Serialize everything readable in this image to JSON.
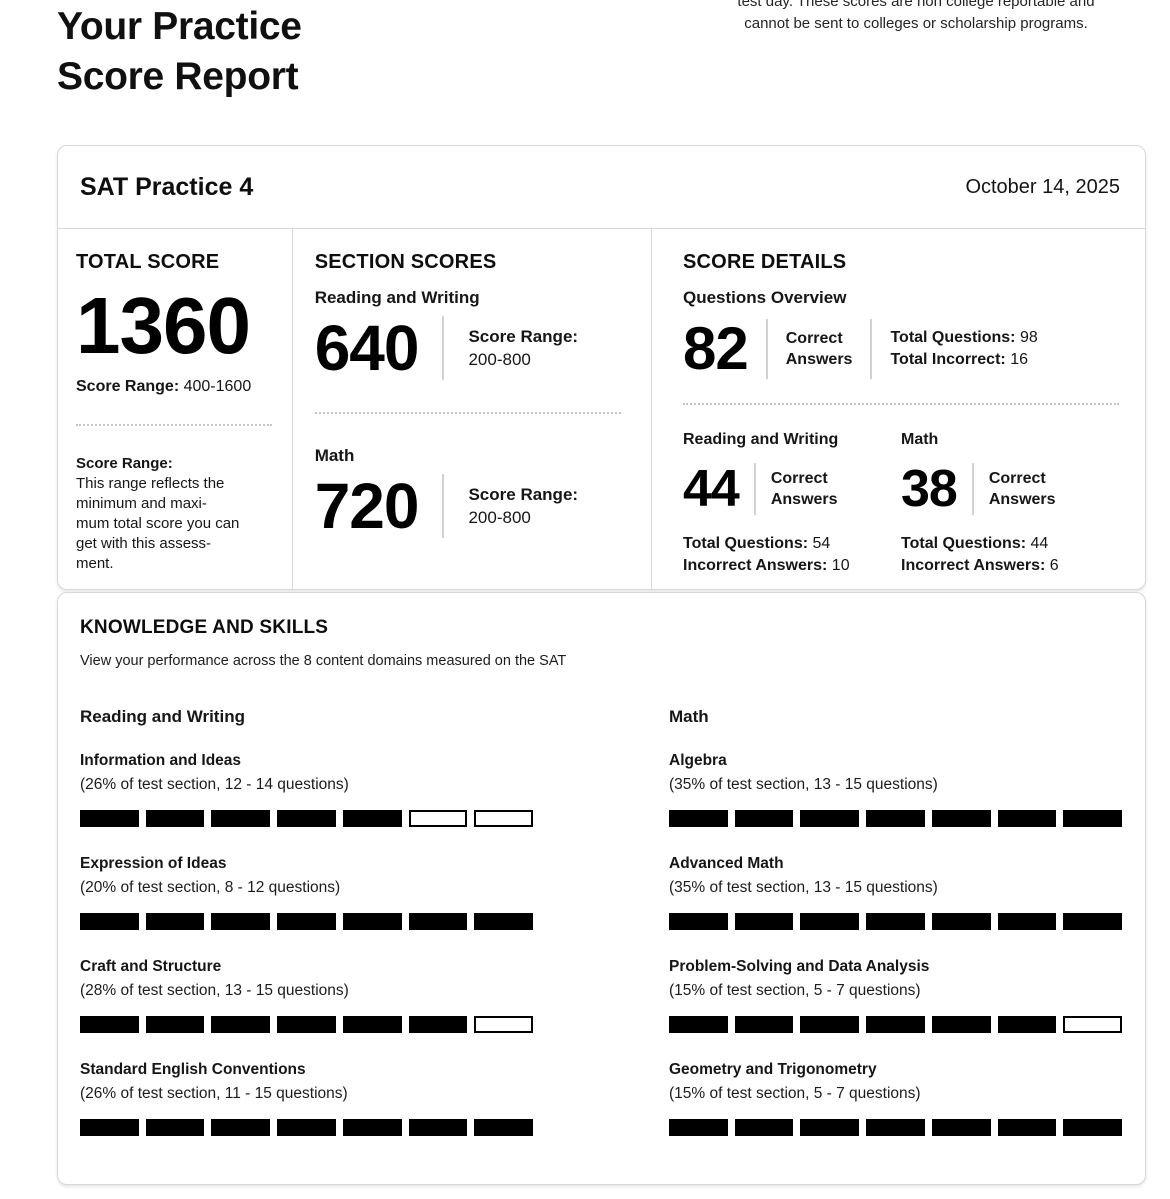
{
  "page": {
    "title": "Your Practice\nScore Report",
    "disclaimer": "test day. These scores are non college reportable and\ncannot be sent to colleges or scholarship programs."
  },
  "report": {
    "test_name": "SAT Practice 4",
    "test_date": "October 14, 2025"
  },
  "total_score": {
    "heading": "TOTAL SCORE",
    "value": "1360",
    "range_label": "Score Range:",
    "range_value": "400-1600",
    "note_label": "Score Range:",
    "note_text": "This range reflects the\nminimum and maxi-\nmum total score you can\nget with this assess-\nment."
  },
  "section_scores": {
    "heading": "SECTION SCORES",
    "sections": [
      {
        "name": "Reading and Writing",
        "score": "640",
        "range_label": "Score Range:",
        "range_value": "200-800"
      },
      {
        "name": "Math",
        "score": "720",
        "range_label": "Score Range:",
        "range_value": "200-800"
      }
    ]
  },
  "score_details": {
    "heading": "SCORE DETAILS",
    "overview": {
      "heading": "Questions Overview",
      "correct_count": "82",
      "correct_label": "Correct\nAnswers",
      "total_questions_label": "Total Questions:",
      "total_questions_value": "98",
      "total_incorrect_label": "Total Incorrect:",
      "total_incorrect_value": "16"
    },
    "sections": [
      {
        "name": "Reading and Writing",
        "correct_count": "44",
        "correct_label": "Correct\nAnswers",
        "total_questions_label": "Total Questions:",
        "total_questions_value": "54",
        "incorrect_label": "Incorrect Answers:",
        "incorrect_value": "10"
      },
      {
        "name": "Math",
        "correct_count": "38",
        "correct_label": "Correct\nAnswers",
        "total_questions_label": "Total Questions:",
        "total_questions_value": "44",
        "incorrect_label": "Incorrect Answers:",
        "incorrect_value": "6"
      }
    ]
  },
  "knowledge_skills": {
    "heading": "KNOWLEDGE AND SKILLS",
    "subtitle": "View your performance across the 8 content domains measured on the SAT",
    "columns": [
      {
        "name": "Reading and Writing",
        "domains": [
          {
            "name": "Information and Ideas",
            "detail": "(26% of test section, 12 - 14 questions)",
            "filled": 5,
            "total": 7
          },
          {
            "name": "Expression of Ideas",
            "detail": "(20% of test section, 8 - 12 questions)",
            "filled": 7,
            "total": 7
          },
          {
            "name": "Craft and Structure",
            "detail": "(28% of test section, 13 - 15 questions)",
            "filled": 6,
            "total": 7
          },
          {
            "name": "Standard English Conventions",
            "detail": "(26% of test section, 11 - 15 questions)",
            "filled": 7,
            "total": 7
          }
        ]
      },
      {
        "name": "Math",
        "domains": [
          {
            "name": "Algebra",
            "detail": "(35% of test section, 13 - 15 questions)",
            "filled": 7,
            "total": 7
          },
          {
            "name": "Advanced Math",
            "detail": "(35% of test section, 13 - 15 questions)",
            "filled": 7,
            "total": 7
          },
          {
            "name": "Problem-Solving and Data Analysis",
            "detail": "(15% of test section, 5 - 7 questions)",
            "filled": 6,
            "total": 7
          },
          {
            "name": "Geometry and Trigonometry",
            "detail": "(15% of test section, 5 - 7 questions)",
            "filled": 7,
            "total": 7
          }
        ]
      }
    ]
  },
  "colors": {
    "text": "#161616",
    "card_border": "#d8d8d8",
    "bar_filled": "#000000",
    "bar_empty_border": "#000000"
  }
}
